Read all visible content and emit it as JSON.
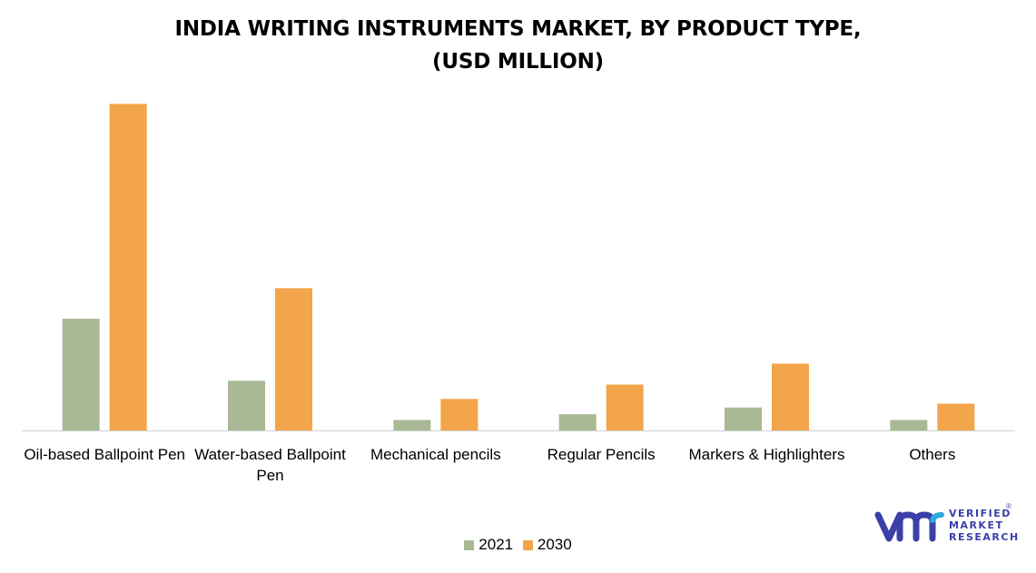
{
  "title_lines": [
    "INDIA WRITING INSTRUMENTS MARKET, BY PRODUCT TYPE,",
    "(USD MILLION)"
  ],
  "chart_data": {
    "type": "bar",
    "title": "INDIA WRITING INSTRUMENTS MARKET, BY PRODUCT TYPE, (USD MILLION)",
    "categories": [
      [
        "Oil-based Ballpoint Pen"
      ],
      [
        "Water-based Ballpoint",
        "Pen"
      ],
      [
        "Mechanical pencils"
      ],
      [
        "Regular Pencils"
      ],
      [
        "Markers & Highlighters"
      ],
      [
        "Others"
      ]
    ],
    "series": [
      {
        "name": "2021",
        "color": "#a9b995",
        "values": [
          117,
          52,
          11,
          17,
          24,
          11
        ]
      },
      {
        "name": "2030",
        "color": "#f2a54a",
        "values": [
          342,
          149,
          33,
          48,
          70,
          28
        ]
      }
    ],
    "ylim": [
      0,
      350
    ],
    "grid": false,
    "y_axis_labels": false,
    "legend_position": "bottom"
  },
  "logo": {
    "lines": [
      "VERIFIED",
      "MARKET",
      "RESEARCH"
    ],
    "mark": "®",
    "color": "#3b3fa8",
    "accent": "#2fa8e0"
  }
}
